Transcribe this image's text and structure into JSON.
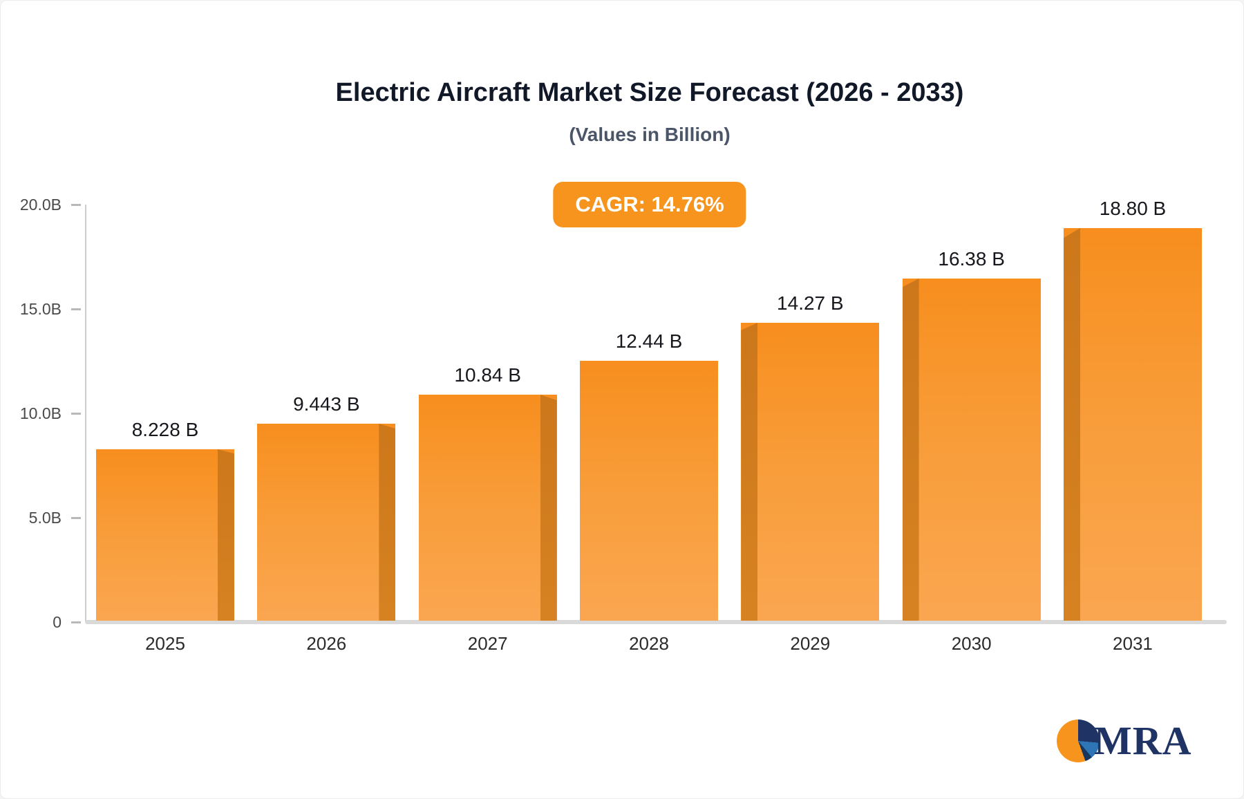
{
  "header": {
    "title": "Electric Aircraft Market Size Forecast (2026 - 2033)",
    "subtitle": "(Values in Billion)"
  },
  "badge": {
    "label": "CAGR: 14.76%",
    "color": "#f7941e"
  },
  "chart_data": {
    "type": "bar",
    "title": "Electric Aircraft Market Size Forecast (2026 - 2033)",
    "subtitle": "(Values in Billion)",
    "annotation": "CAGR: 14.76%",
    "categories": [
      "2025",
      "2026",
      "2027",
      "2028",
      "2029",
      "2030",
      "2031"
    ],
    "values": [
      8.228,
      9.443,
      10.84,
      12.44,
      14.27,
      16.38,
      18.8
    ],
    "value_labels": [
      "8.228 B",
      "9.443 B",
      "10.84 B",
      "12.44 B",
      "14.27 B",
      "16.38 B",
      "18.80 B"
    ],
    "xlabel": "",
    "ylabel": "",
    "ylim": [
      0,
      20
    ],
    "yticks": [
      {
        "label": "20.0B",
        "value": 20
      },
      {
        "label": "15.0B",
        "value": 15
      },
      {
        "label": "10.0B",
        "value": 10
      },
      {
        "label": "5.0B",
        "value": 5
      },
      {
        "label": "0",
        "value": 0
      }
    ],
    "grid": false,
    "legend": "none",
    "shade_side": [
      "right",
      "right",
      "right",
      "none",
      "left",
      "left",
      "left"
    ],
    "colors": {
      "bar_top": "#f78e1e",
      "bar_bottom": "#faa651",
      "bar_shade": "#cd7a1f",
      "axis": "#cccccc",
      "baseline": "#d9d9d9"
    }
  },
  "logo": {
    "text": "MRA"
  }
}
